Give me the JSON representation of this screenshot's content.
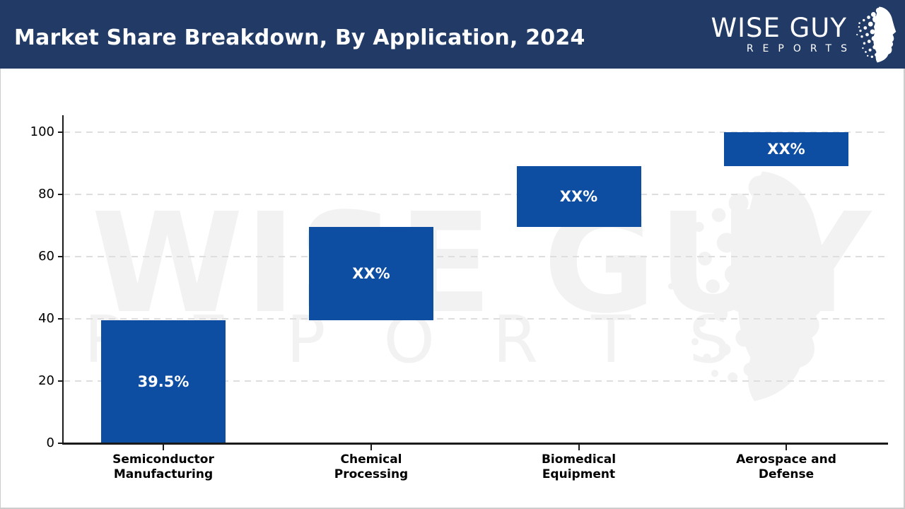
{
  "header": {
    "title": "Market Share Breakdown, By Application, 2024",
    "bg_color": "#213a66",
    "logo": {
      "brand": "WISE GUY",
      "sub": "REPORTS"
    }
  },
  "watermark": {
    "line1": "WISE GUY",
    "line2": "REPORTS"
  },
  "chart_data": {
    "type": "bar",
    "variant": "waterfall-stacked-market-share",
    "title": "Market Share Breakdown, By Application, 2024",
    "categories": [
      [
        "Semiconductor",
        "Manufacturing"
      ],
      [
        "Chemical",
        "Processing"
      ],
      [
        "Biomedical",
        "Equipment"
      ],
      [
        "Aerospace and",
        "Defense"
      ]
    ],
    "segments": [
      {
        "label": "39.5%",
        "from": 0,
        "to": 39.5
      },
      {
        "label": "XX%",
        "from": 39.5,
        "to": 69.5
      },
      {
        "label": "XX%",
        "from": 69.5,
        "to": 89.0
      },
      {
        "label": "XX%",
        "from": 89.0,
        "to": 100.0
      }
    ],
    "ylim": [
      0,
      100
    ],
    "yticks": [
      0,
      20,
      40,
      60,
      80,
      100
    ],
    "grid": "horizontal-dashed",
    "legend": "none",
    "bar_color": "#0d4da2",
    "value_label_color": "#ffffff",
    "grid_color": "#dedede",
    "axis_color": "#1a1a1a"
  }
}
